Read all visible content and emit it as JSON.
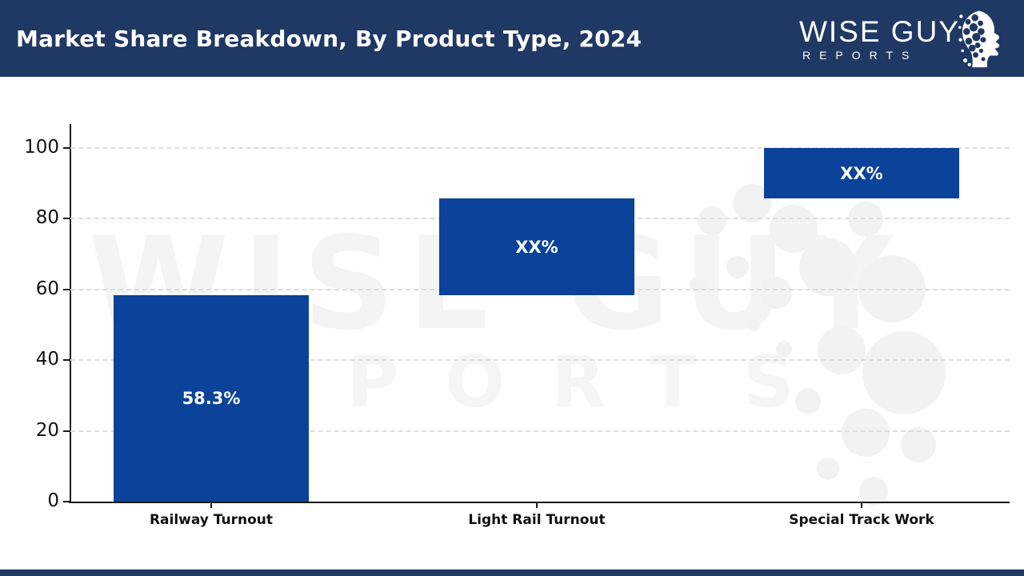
{
  "header": {
    "title": "Market Share Breakdown, By Product Type, 2024",
    "bg_color": "#1f3864",
    "logo": {
      "line1": "WISE GUY",
      "line2": "REPORTS"
    }
  },
  "watermark": {
    "line1": "WISE GUY",
    "line2": "REPORTS"
  },
  "chart_data": {
    "type": "bar",
    "subtype": "waterfall",
    "title": "Market Share Breakdown, By Product Type, 2024",
    "categories": [
      "Railway Turnout",
      "Light Rail Turnout",
      "Special Track Work"
    ],
    "segments": [
      {
        "category": "Railway Turnout",
        "start": 0,
        "end": 58.3,
        "label": "58.3%"
      },
      {
        "category": "Light Rail Turnout",
        "start": 58.3,
        "end": 85.7,
        "label": "XX%"
      },
      {
        "category": "Special Track Work",
        "start": 85.7,
        "end": 100,
        "label": "XX%"
      }
    ],
    "yticks": [
      0,
      20,
      40,
      60,
      80,
      100
    ],
    "ylim": [
      0,
      107
    ],
    "xlabel": "",
    "ylabel": "",
    "grid": "horizontal-dashed",
    "legend": "none",
    "bar_color": "#0a4399",
    "bar_label_color": "#ffffff",
    "axis_color": "#1a1a1a",
    "gridline_color": "#dcdcdc"
  },
  "footer": {
    "bar_color": "#1f3864"
  }
}
